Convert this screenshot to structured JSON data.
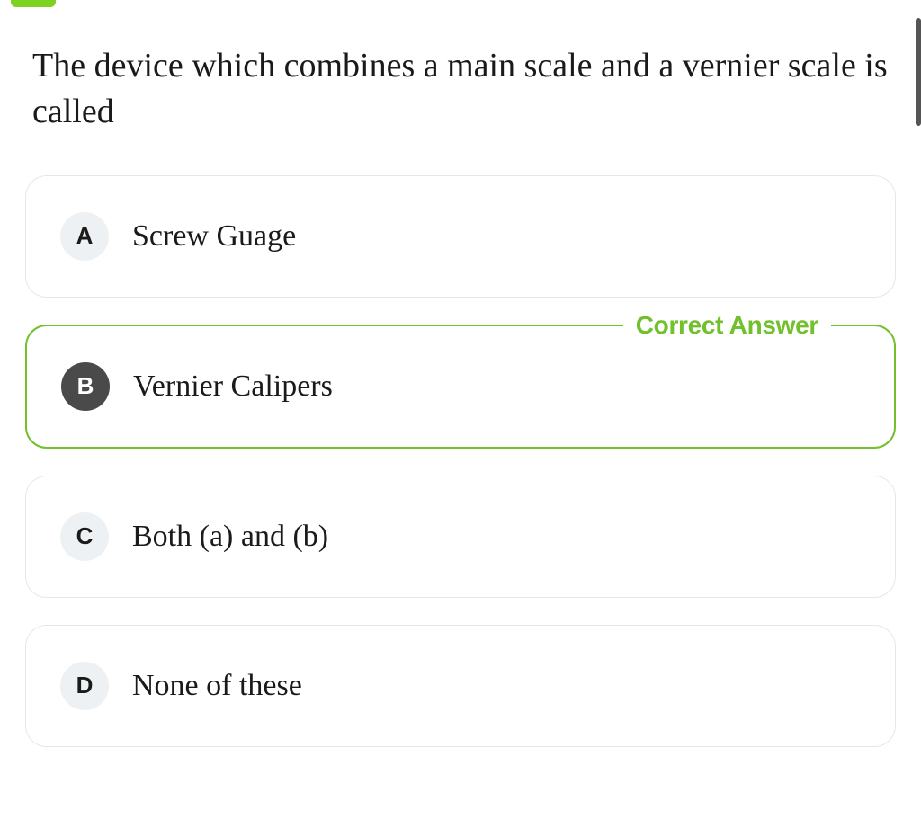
{
  "question": {
    "text": "The device which combines a main scale and a vernier scale is called",
    "text_fontsize": 38,
    "text_color": "#1a1a1a"
  },
  "correct_label": "Correct Answer",
  "options": [
    {
      "letter": "A",
      "label": "Screw Guage",
      "is_correct": false
    },
    {
      "letter": "B",
      "label": "Vernier Calipers",
      "is_correct": true
    },
    {
      "letter": "C",
      "label": "Both (a) and (b)",
      "is_correct": false
    },
    {
      "letter": "D",
      "label": "None of these",
      "is_correct": false
    }
  ],
  "styling": {
    "background_color": "#ffffff",
    "option_border_color": "#e4e7eb",
    "option_border_radius": 24,
    "correct_border_color": "#72c02c",
    "correct_text_color": "#72c02c",
    "letter_bg": "#eef1f3",
    "letter_bg_correct": "#4a4a4a",
    "letter_color_correct": "#ffffff",
    "option_label_fontsize": 34,
    "letter_fontsize": 26,
    "badge_fontsize": 28,
    "top_indicator_color": "#7ed321"
  }
}
